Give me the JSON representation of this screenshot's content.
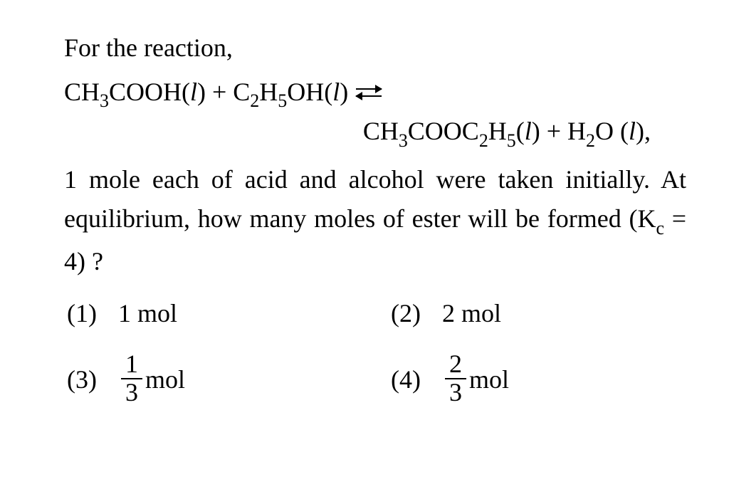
{
  "colors": {
    "text": "#000000",
    "background": "#ffffff",
    "rule": "#000000"
  },
  "fontsize_pt": 27,
  "question": {
    "intro": "For the reaction,",
    "reaction": {
      "lhs_html": "CH<span class='sub'>3</span>COOH(<span class='ital'>l</span>) + C<span class='sub'>2</span>H<span class='sub'>5</span>OH(<span class='ital'>l</span>)",
      "rhs_html": "CH<span class='sub'>3</span>COOC<span class='sub'>2</span>H<span class='sub'>5</span>(<span class='ital'>l</span>) + H<span class='sub'>2</span>O (<span class='ital'>l</span>),"
    },
    "body_html": "1 mole each of acid and alcohol were taken initially. At equilibrium, how many moles of ester will be formed (K<span class='sub'>c</span> = 4) ?"
  },
  "options": [
    {
      "num": "(1)",
      "html": "1 mol"
    },
    {
      "num": "(2)",
      "html": "2 mol"
    },
    {
      "num": "(3)",
      "frac": {
        "n": "1",
        "d": "3"
      },
      "suffix": "mol"
    },
    {
      "num": "(4)",
      "frac": {
        "n": "2",
        "d": "3"
      },
      "suffix": " mol"
    }
  ]
}
